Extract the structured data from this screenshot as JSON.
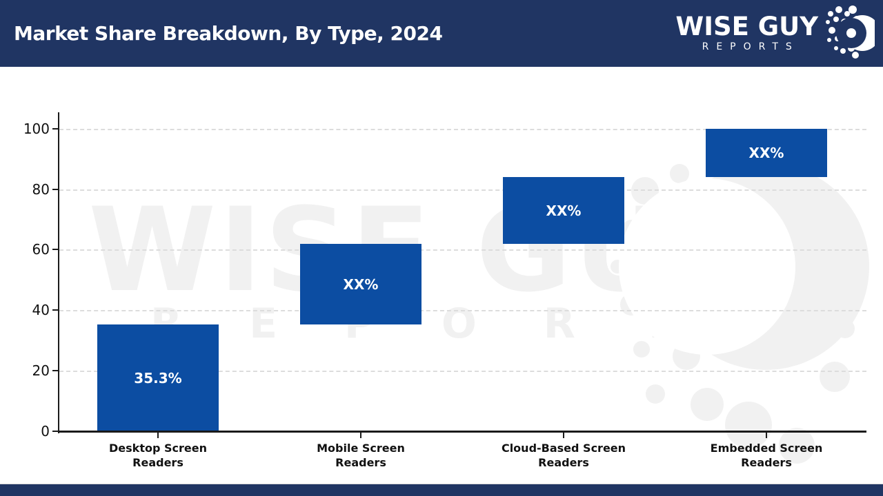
{
  "header": {
    "title": "Market Share Breakdown, By Type, 2024",
    "brand_line1": "WISE GUY",
    "brand_line2": "REPORTS",
    "background_color": "#203563"
  },
  "watermark": {
    "line1": "WISE GUY",
    "line2": "R E P O R T S"
  },
  "chart_data": {
    "type": "bar",
    "subtype": "waterfall",
    "title": "Market Share Breakdown, By Type, 2024",
    "categories": [
      "Desktop Screen\nReaders",
      "Mobile Screen\nReaders",
      "Cloud-Based Screen\nReaders",
      "Embedded Screen\nReaders"
    ],
    "segments": [
      {
        "category": "Desktop Screen Readers",
        "start": 0,
        "end": 35.3,
        "label": "35.3%"
      },
      {
        "category": "Mobile Screen Readers",
        "start": 35.3,
        "end": 62,
        "label": "XX%"
      },
      {
        "category": "Cloud-Based Screen Readers",
        "start": 62,
        "end": 84,
        "label": "XX%"
      },
      {
        "category": "Embedded Screen Readers",
        "start": 84,
        "end": 100,
        "label": "XX%"
      }
    ],
    "yticks": [
      0,
      20,
      40,
      60,
      80,
      100
    ],
    "ylim": [
      0,
      105
    ],
    "xlabel": "",
    "ylabel": "",
    "grid": "horizontal-dashed",
    "legend": "none",
    "bar_color": "#0c4da2",
    "value_label_color": "#ffffff",
    "grid_color": "#dcdcdc",
    "axis_color": "#1a1a1a"
  }
}
